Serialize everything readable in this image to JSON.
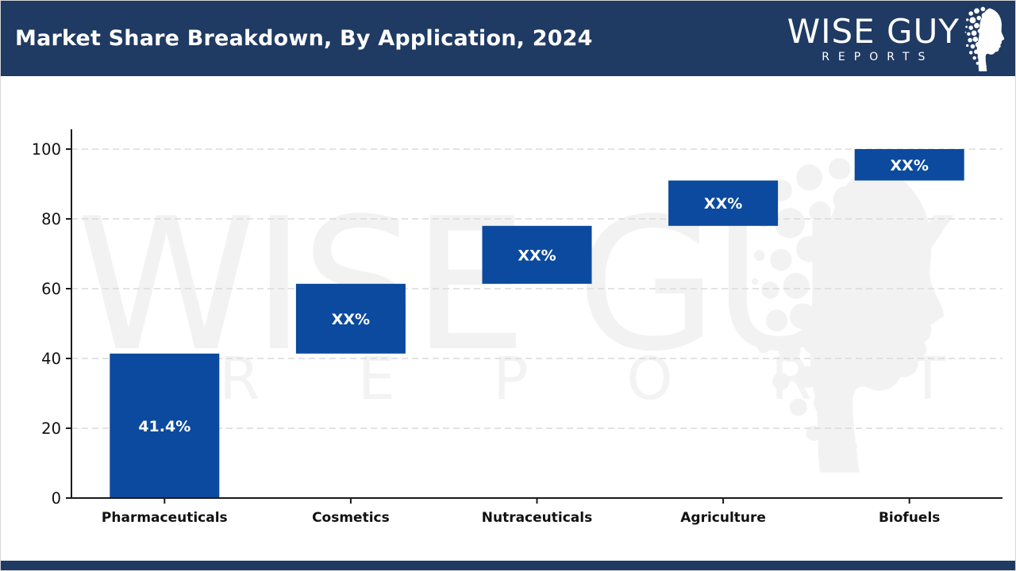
{
  "header": {
    "title": "Market Share Breakdown, By Application, 2024",
    "logo": {
      "line1": "WISE GUY",
      "line2": "REPORTS"
    }
  },
  "colors": {
    "header_bg": "#1f3a63",
    "footer_bg": "#1f3a63",
    "bar_fill": "#0b4a9e",
    "bar_label": "#ffffff",
    "axis": "#1a1a1a",
    "gridline": "#dadada",
    "tick_label": "#111111",
    "watermark": "#f2f2f2"
  },
  "chart_data": {
    "type": "bar",
    "subtype": "waterfall",
    "title": "Market Share Breakdown, By Application, 2024",
    "xlabel": "",
    "ylabel": "",
    "categories": [
      "Pharmaceuticals",
      "Cosmetics",
      "Nutraceuticals",
      "Agriculture",
      "Biofuels"
    ],
    "segments": [
      {
        "category": "Pharmaceuticals",
        "start": 0,
        "end": 41.4,
        "label": "41.4%"
      },
      {
        "category": "Cosmetics",
        "start": 41.4,
        "end": 61.4,
        "label": "XX%"
      },
      {
        "category": "Nutraceuticals",
        "start": 61.4,
        "end": 78.0,
        "label": "XX%"
      },
      {
        "category": "Agriculture",
        "start": 78.0,
        "end": 91.0,
        "label": "XX%"
      },
      {
        "category": "Biofuels",
        "start": 91.0,
        "end": 100.0,
        "label": "XX%"
      }
    ],
    "yticks": [
      0,
      20,
      40,
      60,
      80,
      100
    ],
    "ylim": [
      0,
      106
    ],
    "grid": "horizontal-dashed",
    "legend": "none"
  },
  "watermark": {
    "line1": "WISE GUY",
    "line2": "R E P O R T S"
  }
}
